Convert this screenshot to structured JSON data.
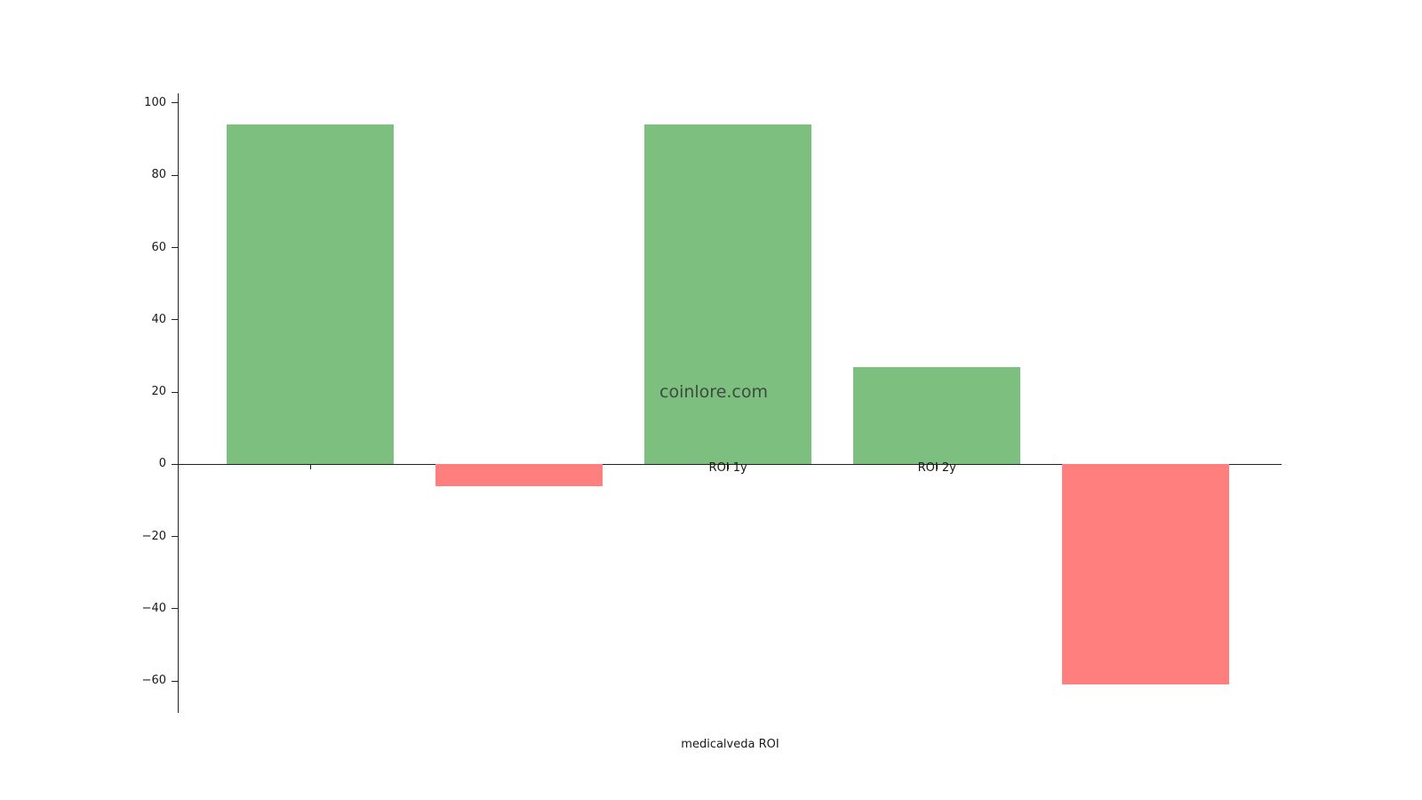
{
  "watermark": {
    "text": "coinlore.com"
  },
  "chart_data": {
    "type": "bar",
    "title": "",
    "xlabel": "medicalveda ROI",
    "ylabel": "",
    "categories": [
      "",
      "",
      "ROI 1y",
      "ROI 2y",
      ""
    ],
    "values": [
      94,
      -6,
      94,
      27,
      -61
    ],
    "colors": {
      "positive": "#7dbf7f",
      "negative": "#ff7f7f"
    },
    "yticks": [
      {
        "value": 100,
        "label": "100"
      },
      {
        "value": 80,
        "label": "80"
      },
      {
        "value": 60,
        "label": "60"
      },
      {
        "value": 40,
        "label": "40"
      },
      {
        "value": 20,
        "label": "20"
      },
      {
        "value": 0,
        "label": "0"
      },
      {
        "value": -20,
        "label": "−20"
      },
      {
        "value": -40,
        "label": "−40"
      },
      {
        "value": -60,
        "label": "−60"
      }
    ],
    "xticks": [
      {
        "cat": 0,
        "mark": true,
        "label": ""
      },
      {
        "cat": 1,
        "mark": false,
        "label": ""
      },
      {
        "cat": 2,
        "mark": true,
        "label": "ROI 1y"
      },
      {
        "cat": 3,
        "mark": true,
        "label": "ROI 2y"
      },
      {
        "cat": 4,
        "mark": false,
        "label": ""
      }
    ],
    "ylim": [
      -68.8,
      102.7
    ],
    "xlim": [
      -0.63,
      4.65
    ],
    "bar_width_categories": 0.8,
    "grid": false,
    "legend": null,
    "axis_color": "#222222",
    "text_color": "#1a1a1a",
    "background_color": "#ffffff"
  }
}
